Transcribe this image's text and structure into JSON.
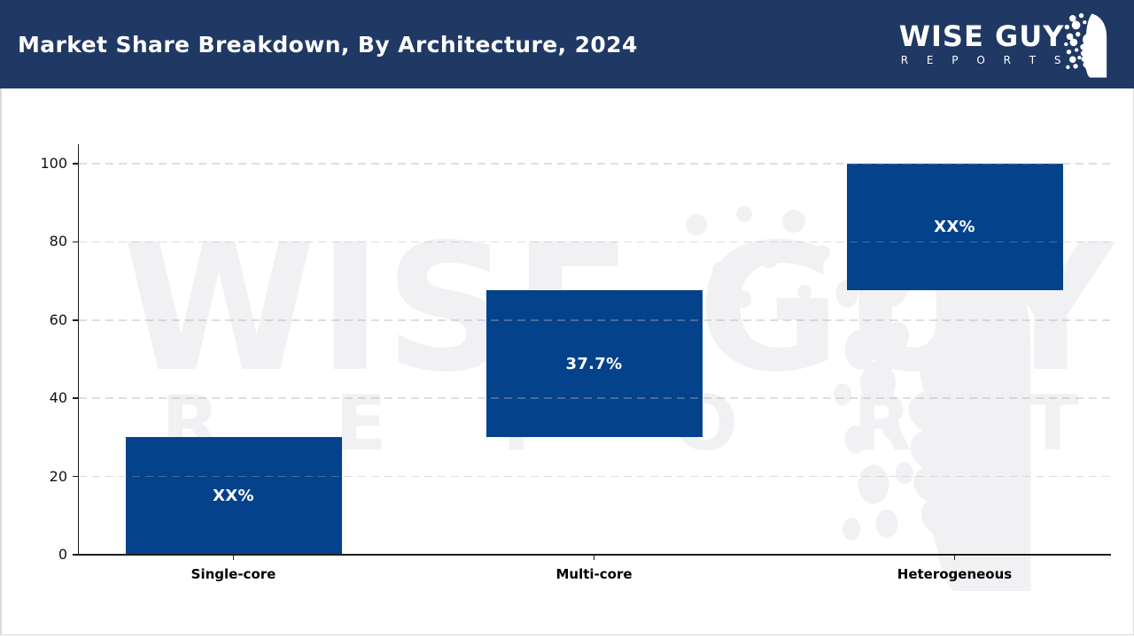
{
  "header": {
    "title": "Market Share Breakdown, By Architecture, 2024",
    "logo": {
      "line1": "WISE GUY",
      "line2": "R E P O R T S"
    }
  },
  "watermark": {
    "line1": "WISE GUY",
    "line2": "R E P O R T S"
  },
  "colors": {
    "header_bg": "#1f3864",
    "bar": "#04428c",
    "axis": "#1d1d1d",
    "grid": "rgba(172,172,172,0.4)",
    "watermark": "#f1f1f4"
  },
  "chart_data": {
    "type": "bar",
    "subtype": "floating-segment (stacked percentage breakdown)",
    "title": "Market Share Breakdown, By Architecture, 2024",
    "categories": [
      "Single-core",
      "Multi-core",
      "Heterogeneous"
    ],
    "segments": [
      {
        "category": "Single-core",
        "from": 0,
        "to": 30,
        "label": "XX%"
      },
      {
        "category": "Multi-core",
        "from": 30,
        "to": 67.7,
        "label": "37.7%"
      },
      {
        "category": "Heterogeneous",
        "from": 67.7,
        "to": 100,
        "label": "XX%"
      }
    ],
    "xlabel": "",
    "ylabel": "",
    "ylim": [
      0,
      100
    ],
    "yticks": [
      0,
      20,
      40,
      60,
      80,
      100
    ],
    "grid": "horizontal-dashed",
    "legend": "none"
  }
}
